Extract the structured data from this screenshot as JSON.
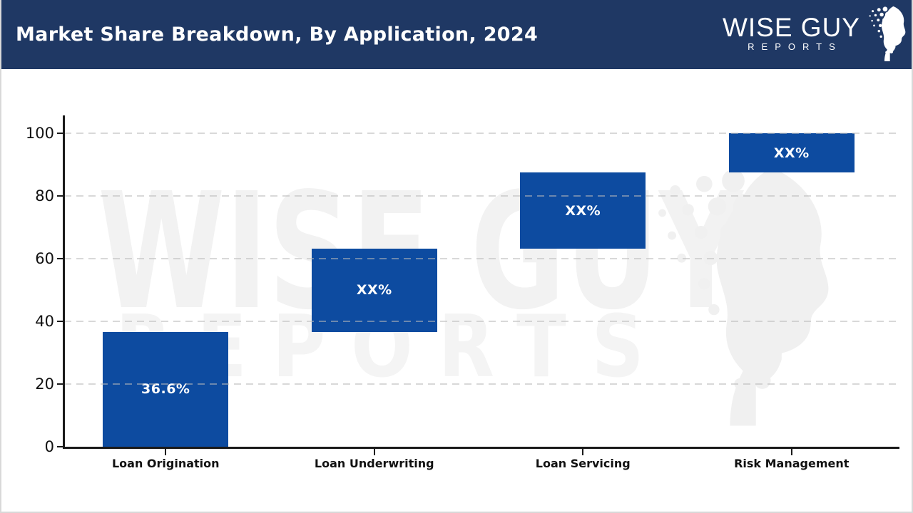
{
  "header": {
    "title": "Market Share Breakdown, By Application, 2024",
    "logo": {
      "line1": "WISE GUY",
      "line2": "REPORTS"
    }
  },
  "watermark": {
    "line1": "WISE GUY",
    "line2": "REPORTS"
  },
  "colors": {
    "header_bg": "#1f3864",
    "bar_blue": "#0d4ba0",
    "watermark_gray": "#f2f2f2",
    "axis_black": "#1a1a1a",
    "grid_gray": "#d9d9d9"
  },
  "chart_data": {
    "type": "bar",
    "subtype": "floating-segment-waterfall",
    "title": "Market Share Breakdown, By Application, 2024",
    "categories": [
      "Loan Origination",
      "Loan Underwriting",
      "Loan Servicing",
      "Risk Management"
    ],
    "segments": [
      {
        "category": "Loan Origination",
        "start": 0,
        "end": 36.6,
        "label": "36.6%"
      },
      {
        "category": "Loan Underwriting",
        "start": 36.6,
        "end": 63.2,
        "label": "XX%"
      },
      {
        "category": "Loan Servicing",
        "start": 63.2,
        "end": 87.4,
        "label": "XX%"
      },
      {
        "category": "Risk Management",
        "start": 87.4,
        "end": 100,
        "label": "XX%"
      }
    ],
    "yticks": [
      0,
      20,
      40,
      60,
      80,
      100
    ],
    "ylim": [
      0,
      105
    ],
    "xlabel": "",
    "ylabel": "",
    "grid": "horizontal-dashed",
    "legend": "none"
  }
}
